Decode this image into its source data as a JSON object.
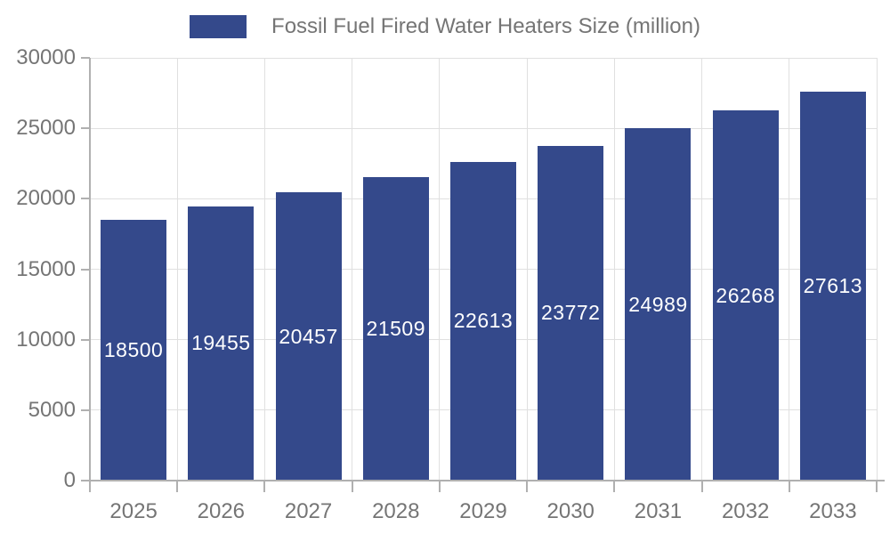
{
  "chart_data": {
    "type": "bar",
    "title": "",
    "legend": {
      "label": "Fossil Fuel Fired Water Heaters Size (million)",
      "position": "top-center"
    },
    "categories": [
      "2025",
      "2026",
      "2027",
      "2028",
      "2029",
      "2030",
      "2031",
      "2032",
      "2033"
    ],
    "values": [
      18500,
      19455,
      20457,
      21509,
      22613,
      23772,
      24989,
      26268,
      27613
    ],
    "xlabel": "",
    "ylabel": "",
    "ylim": [
      0,
      30000
    ],
    "yticks": [
      0,
      5000,
      10000,
      15000,
      20000,
      25000,
      30000
    ],
    "grid": true,
    "value_label_placement": "inside-center",
    "colors": {
      "bar": "#34498b",
      "value_label": "#ffffff",
      "axis_text": "#757575",
      "legend_text": "#757575",
      "grid_line": "#e0e0e0",
      "axis_line": "#b0b0b0",
      "background": "#ffffff"
    }
  }
}
